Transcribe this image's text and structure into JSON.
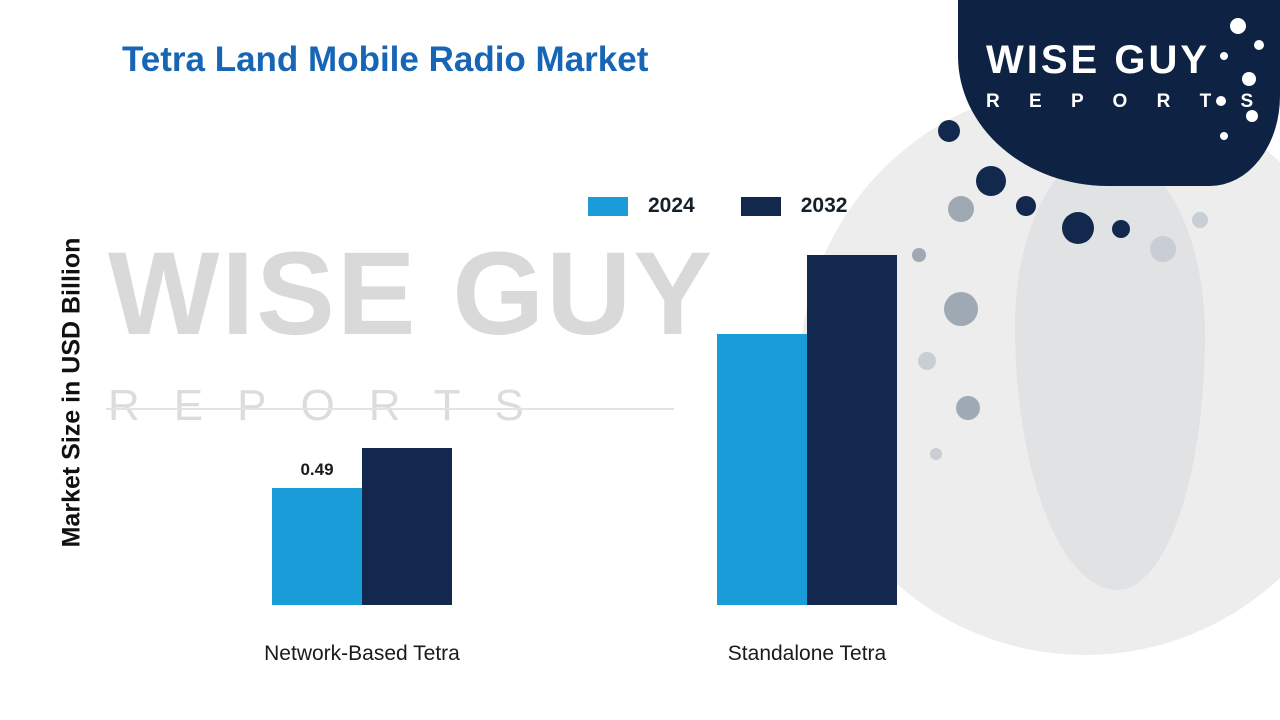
{
  "title": "Tetra Land Mobile Radio Market",
  "logo": {
    "title": "WISE GUY",
    "subtitle": "R E P O R T S"
  },
  "watermark": {
    "main": "WISE GUY",
    "sub": "REPORTS"
  },
  "chart_data": {
    "type": "bar",
    "title": "Tetra Land Mobile Radio Market",
    "xlabel": "",
    "ylabel": "Market Size in USD Billion",
    "categories": [
      "Network-Based Tetra",
      "Standalone Tetra"
    ],
    "series": [
      {
        "name": "2024",
        "color": "#199cd8",
        "values": [
          0.49,
          1.14
        ]
      },
      {
        "name": "2032",
        "color": "#12294d",
        "values": [
          0.66,
          1.47
        ]
      }
    ],
    "value_label": "0.49",
    "legend_position": "top-right",
    "grid": false,
    "ylim": [
      0,
      1.47
    ]
  },
  "colors": {
    "title_blue": "#1766b5",
    "bar_2024": "#199cd8",
    "bar_2032": "#12294d",
    "logo_navy": "#0e2344",
    "watermark_gray": "#d9d9d9"
  }
}
